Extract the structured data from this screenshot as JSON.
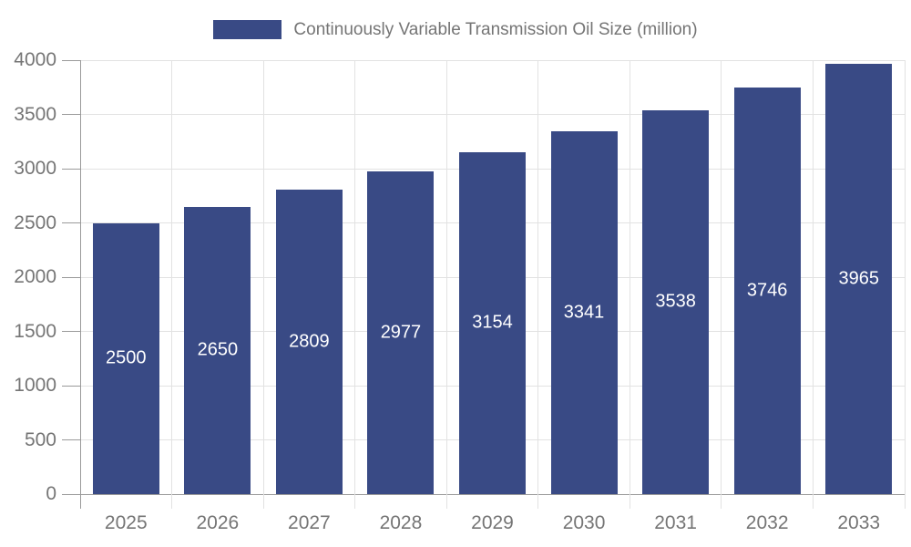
{
  "chart_data": {
    "type": "bar",
    "title": "Continuously Variable Transmission Oil Size (million)",
    "categories": [
      "2025",
      "2026",
      "2027",
      "2028",
      "2029",
      "2030",
      "2031",
      "2032",
      "2033"
    ],
    "series": [
      {
        "name": "Continuously Variable Transmission Oil Size (million)",
        "values": [
          2500,
          2650,
          2809,
          2977,
          3154,
          3341,
          3538,
          3746,
          3965
        ]
      }
    ],
    "xlabel": "",
    "ylabel": "",
    "ylim": [
      0,
      4000
    ],
    "yticks": [
      0,
      500,
      1000,
      1500,
      2000,
      2500,
      3000,
      3500,
      4000
    ],
    "grid": true,
    "legend_position": "top-center",
    "value_labels": "inside-center",
    "colors": {
      "bar": "#394A85",
      "bar_value_text": "#ffffff",
      "axis_text": "#757575",
      "legend_text": "#757575",
      "gridline": "#e2e2e2",
      "axis_line": "#9a9a9a"
    }
  }
}
